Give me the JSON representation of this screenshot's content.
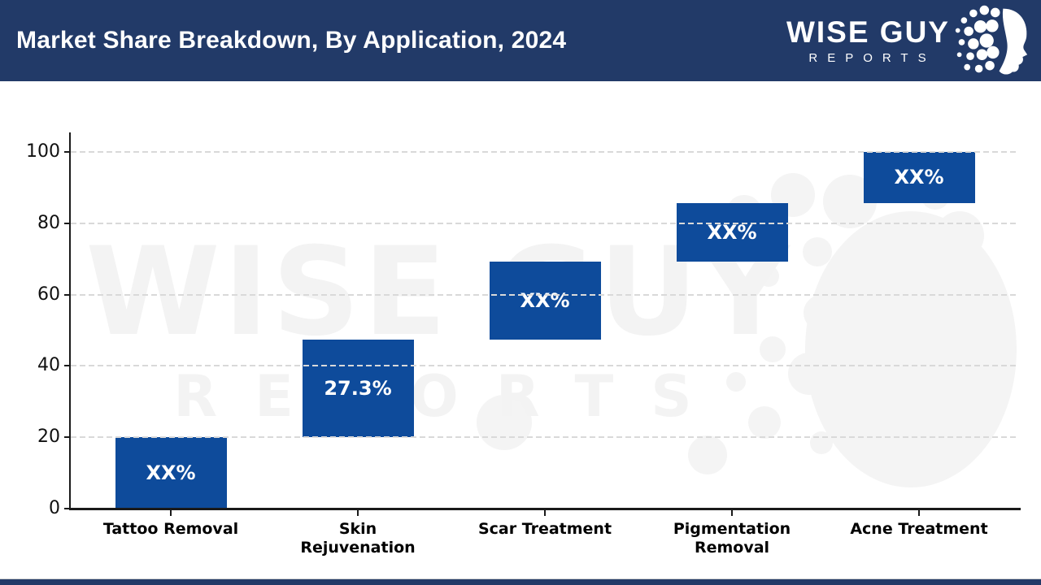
{
  "header": {
    "title": "Market Share Breakdown, By Application, 2024",
    "logo": {
      "line1": "WISE GUY",
      "line2": "REPORTS"
    }
  },
  "watermark": {
    "line1": "WISE GUY",
    "line2": "REPORTS"
  },
  "colors": {
    "header_bg": "#223A68",
    "footer_bg": "#223A68",
    "bar": "#0E4B9B",
    "bar_label_text": "#FFFFFF",
    "gridline": "#D9D9D9",
    "axis": "#1A1A1A",
    "tick_label_text": "#000000",
    "watermark": "#F3F3F3",
    "background": "#FFFFFF"
  },
  "chart_data": {
    "type": "bar",
    "subtype": "waterfall-floating-bars",
    "title": "Market Share Breakdown, By Application, 2024",
    "xlabel": "",
    "ylabel": "",
    "ylim": [
      0,
      105
    ],
    "grid": "horizontal-dashed",
    "legend": "none",
    "categories": [
      "Tattoo Removal",
      "Skin Rejuvenation",
      "Scar Treatment",
      "Pigmentation Removal",
      "Acne Treatment"
    ],
    "yticks": [
      0,
      20,
      40,
      60,
      80,
      100
    ],
    "segments": [
      {
        "category": "Tattoo Removal",
        "label": "XX%",
        "start": 0,
        "end": 20
      },
      {
        "category": "Skin Rejuvenation",
        "label": "27.3%",
        "start": 20,
        "end": 47.3
      },
      {
        "category": "Scar Treatment",
        "label": "XX%",
        "start": 47.3,
        "end": 69.3
      },
      {
        "category": "Pigmentation Removal",
        "label": "XX%",
        "start": 69.3,
        "end": 85.7
      },
      {
        "category": "Acne Treatment",
        "label": "XX%",
        "start": 85.7,
        "end": 100
      }
    ]
  }
}
